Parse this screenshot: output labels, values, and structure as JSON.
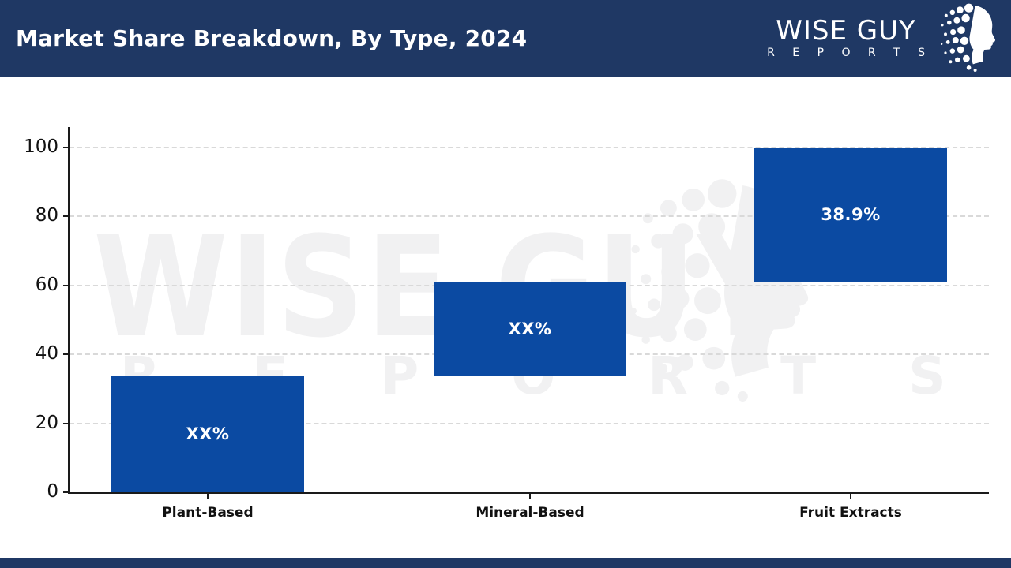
{
  "header": {
    "title": "Market Share Breakdown, By Type, 2024",
    "bg_color": "#1f3864",
    "logo": {
      "line1": "WISE GUY",
      "line2": "R E P O R T S"
    }
  },
  "watermark": {
    "line1": "WISE GUY",
    "line2": "R E P O R T S"
  },
  "chart_data": {
    "type": "bar",
    "variant": "floating_waterfall_segments",
    "title": "Market Share Breakdown, By Type, 2024",
    "categories": [
      "Plant-Based",
      "Mineral-Based",
      "Fruit Extracts"
    ],
    "segments": [
      {
        "category": "Plant-Based",
        "from": 0,
        "to": 33.8,
        "label": "XX%"
      },
      {
        "category": "Mineral-Based",
        "from": 33.8,
        "to": 61.1,
        "label": "XX%"
      },
      {
        "category": "Fruit Extracts",
        "from": 61.1,
        "to": 100,
        "label": "38.9%"
      }
    ],
    "xlabel": "",
    "ylabel": "",
    "ylim": [
      0,
      100
    ],
    "yticks": [
      0,
      20,
      40,
      60,
      80,
      100
    ],
    "bar_color": "#0b4aa2",
    "grid": "horizontal-dashed",
    "legend": "none"
  }
}
